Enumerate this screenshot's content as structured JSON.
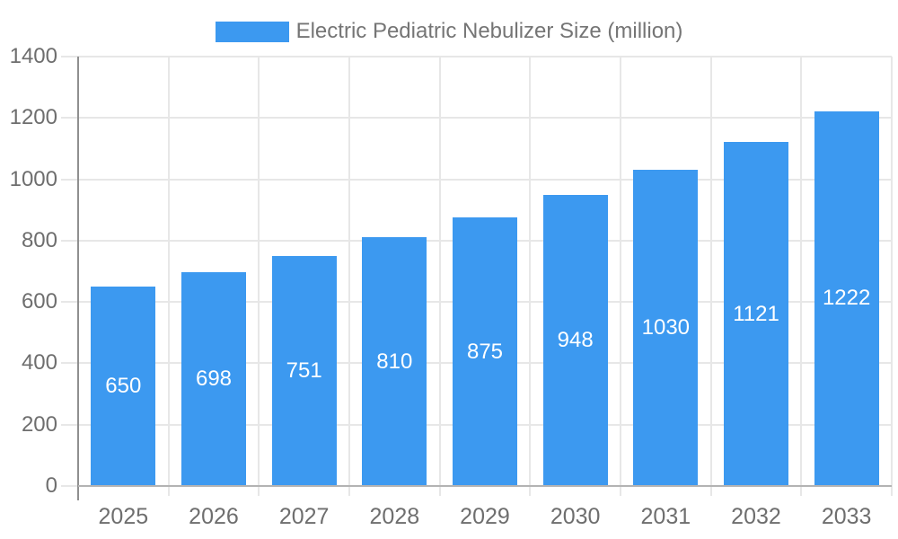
{
  "chart_data": {
    "type": "bar",
    "title": "Electric Pediatric Nebulizer Size (million)",
    "categories": [
      "2025",
      "2026",
      "2027",
      "2028",
      "2029",
      "2030",
      "2031",
      "2032",
      "2033"
    ],
    "series": [
      {
        "name": "Electric Pediatric Nebulizer Size (million)",
        "color": "#3C99F0",
        "values": [
          650,
          698,
          751,
          810,
          875,
          948,
          1030,
          1121,
          1222
        ]
      }
    ],
    "xlabel": "",
    "ylabel": "",
    "ylim": [
      0,
      1400
    ],
    "yticks": [
      0,
      200,
      400,
      600,
      800,
      1000,
      1200,
      1400
    ],
    "grid": true,
    "legend_position": "top",
    "value_labels": {
      "position": "inside-center",
      "color": "#FFFFFF"
    }
  },
  "colors": {
    "bar": "#3C99F0",
    "grid": "#E7E7E7",
    "y_axis_line": "#8F8F8F",
    "x_baseline": "#B3B3B3",
    "tick_label": "#6E6E6E",
    "legend_text": "#757575",
    "value_label": "#FFFFFF",
    "background": "#FFFFFF"
  }
}
